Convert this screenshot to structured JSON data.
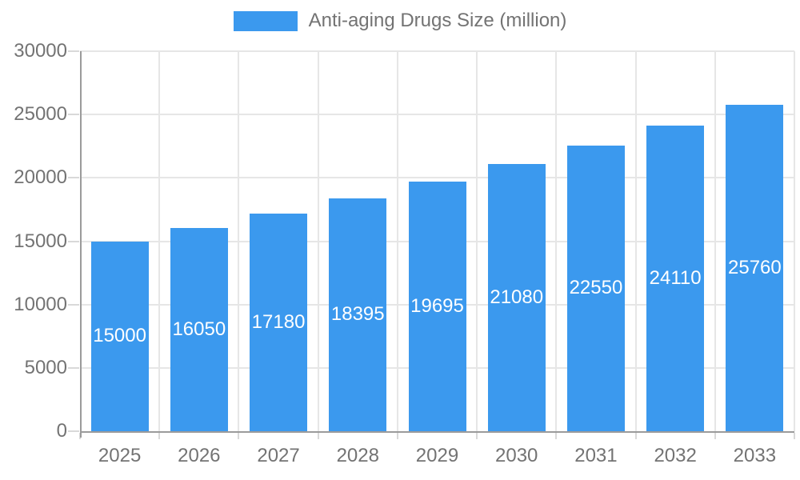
{
  "legend": {
    "label": "Anti-aging Drugs Size (million)"
  },
  "chart_data": {
    "type": "bar",
    "title": "Anti-aging Drugs Size (million)",
    "categories": [
      "2025",
      "2026",
      "2027",
      "2028",
      "2029",
      "2030",
      "2031",
      "2032",
      "2033"
    ],
    "values": [
      15000,
      16050,
      17180,
      18395,
      19695,
      21080,
      22550,
      24110,
      25760
    ],
    "xlabel": "",
    "ylabel": "",
    "ylim": [
      0,
      30000
    ],
    "yticks": [
      0,
      5000,
      10000,
      15000,
      20000,
      25000,
      30000
    ],
    "grid": true,
    "legend_position": "top",
    "bar_color": "#3B99EE",
    "bar_label_color": "#ffffff",
    "axis_text_color": "#737373",
    "gridline_color": "#E6E6E6",
    "axis_line_color": "#9B9B9B"
  }
}
